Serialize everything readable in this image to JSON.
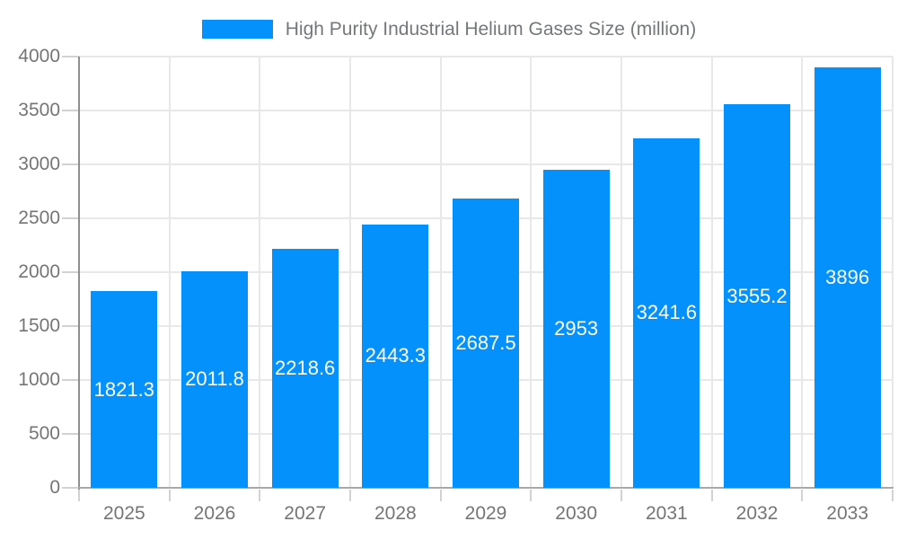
{
  "chart": {
    "legend": {
      "label": "High Purity Industrial Helium Gases Size (million)"
    },
    "colors": {
      "bar": "#0591fb",
      "bar_label": "#ffffff",
      "axis_label": "#757575",
      "legend_label": "#75787b",
      "grid": "#e8e8e8",
      "tick": "#d2d2d2",
      "y_axis_line": "#8f8f8f",
      "x_axis_line": "#a8a8a8",
      "background": "#ffffff"
    }
  },
  "chart_data": {
    "type": "bar",
    "title": "High Purity Industrial Helium Gases Size (million)",
    "categories": [
      "2025",
      "2026",
      "2027",
      "2028",
      "2029",
      "2030",
      "2031",
      "2032",
      "2033"
    ],
    "values": [
      1821.3,
      2011.8,
      2218.6,
      2443.3,
      2687.5,
      2953,
      3241.6,
      3555.2,
      3896
    ],
    "bar_labels": [
      "1821.3",
      "2011.8",
      "2218.6",
      "2443.3",
      "2687.5",
      "2953",
      "3241.6",
      "3555.2",
      "3896"
    ],
    "series": [
      {
        "name": "High Purity Industrial Helium Gases Size (million)",
        "values": [
          1821.3,
          2011.8,
          2218.6,
          2443.3,
          2687.5,
          2953,
          3241.6,
          3555.2,
          3896
        ]
      }
    ],
    "xlabel": "",
    "ylabel": "",
    "ylim": [
      0,
      4000
    ],
    "ytick_step": 500,
    "ytick_labels": [
      "0",
      "500",
      "1000",
      "1500",
      "2000",
      "2500",
      "3000",
      "3500",
      "4000"
    ],
    "grid": true,
    "legend_position": "top",
    "bar_label_position": "inside-center"
  }
}
